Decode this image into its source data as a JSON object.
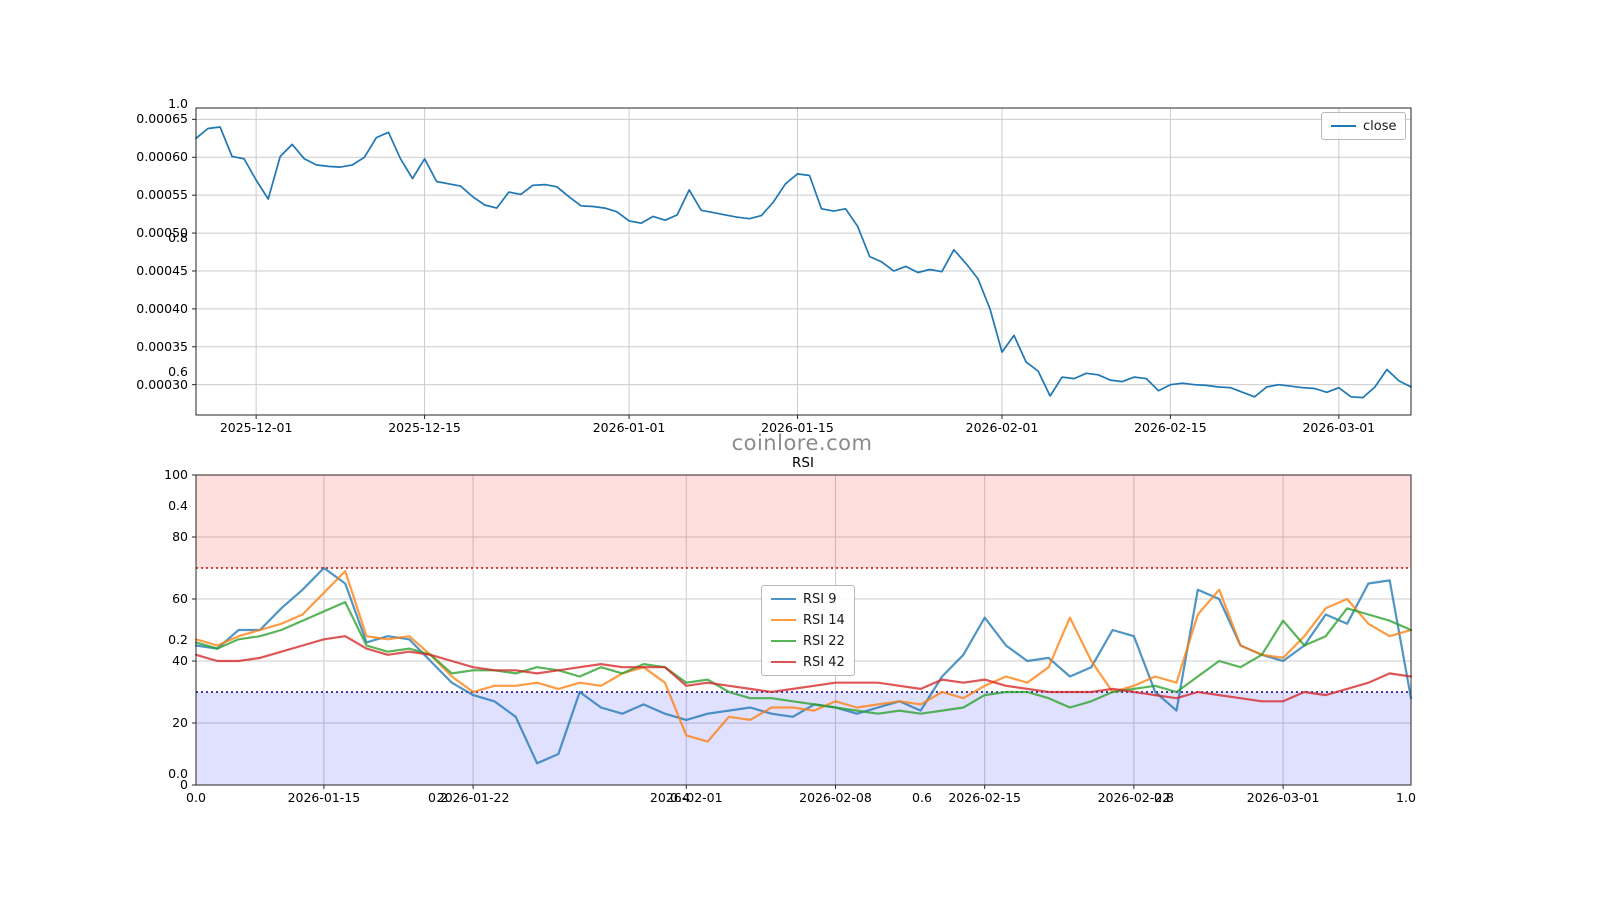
{
  "watermark": "coinlore.com",
  "overlay_axis": {
    "y_labels": [
      "1.0",
      "0.8",
      "0.6",
      "0.4",
      "0.2",
      "0.0"
    ],
    "x_labels": [
      "0.0",
      "0.2",
      "0.4",
      "0.6",
      "0.8",
      "1.0"
    ]
  },
  "chart_data": [
    {
      "type": "line",
      "name": "price-close",
      "title": "",
      "x_start_date": "2025-11-26",
      "x_end_date": "2026-03-07",
      "x_tick_labels": [
        "2025-12-01",
        "2025-12-15",
        "2026-01-01",
        "2026-01-15",
        "2026-02-01",
        "2026-02-15",
        "2026-03-01"
      ],
      "x_tick_day_index": [
        5,
        19,
        36,
        50,
        67,
        81,
        95
      ],
      "ylim": [
        0.00026,
        0.000665
      ],
      "yticks": [
        0.0003,
        0.00035,
        0.0004,
        0.00045,
        0.0005,
        0.00055,
        0.0006,
        0.00065
      ],
      "ytick_labels": [
        "0.00030",
        "0.00035",
        "0.00040",
        "0.00045",
        "0.00050",
        "0.00055",
        "0.00060",
        "0.00065"
      ],
      "grid": true,
      "legend_position": "upper-right",
      "series": [
        {
          "name": "close",
          "color": "#1f77b4",
          "values": [
            0.000625,
            0.000638,
            0.00064,
            0.000601,
            0.000598,
            0.00057,
            0.000545,
            0.000601,
            0.000617,
            0.000598,
            0.00059,
            0.000588,
            0.000587,
            0.00059,
            0.0006,
            0.000626,
            0.000633,
            0.000598,
            0.000572,
            0.000598,
            0.000568,
            0.000565,
            0.000562,
            0.000548,
            0.000537,
            0.000533,
            0.000554,
            0.000551,
            0.000563,
            0.000564,
            0.000561,
            0.000548,
            0.000536,
            0.000535,
            0.000533,
            0.000528,
            0.000516,
            0.000513,
            0.000522,
            0.000517,
            0.000524,
            0.000557,
            0.00053,
            0.000527,
            0.000524,
            0.000521,
            0.000519,
            0.000523,
            0.000541,
            0.000565,
            0.000578,
            0.000576,
            0.000532,
            0.000529,
            0.000532,
            0.000509,
            0.000469,
            0.000462,
            0.00045,
            0.000456,
            0.000448,
            0.000452,
            0.000449,
            0.000478,
            0.00046,
            0.00044,
            0.0004,
            0.000343,
            0.000365,
            0.00033,
            0.000318,
            0.000285,
            0.00031,
            0.000308,
            0.000315,
            0.000313,
            0.000306,
            0.000304,
            0.00031,
            0.000308,
            0.000292,
            0.0003,
            0.000302,
            0.0003,
            0.000299,
            0.000297,
            0.000296,
            0.00029,
            0.000284,
            0.000297,
            0.0003,
            0.000298,
            0.000296,
            0.000295,
            0.00029,
            0.000296,
            0.000284,
            0.000283,
            0.000297,
            0.00032,
            0.000305,
            0.000297
          ]
        }
      ]
    },
    {
      "type": "line",
      "name": "rsi",
      "title": "RSI",
      "x_start_date": "2026-01-09",
      "x_end_date": "2026-03-07",
      "x_tick_labels": [
        "2026-01-15",
        "2026-01-22",
        "2026-02-01",
        "2026-02-08",
        "2026-02-15",
        "2026-02-22",
        "2026-03-01"
      ],
      "x_tick_day_index": [
        6,
        13,
        23,
        30,
        37,
        44,
        51
      ],
      "ylim": [
        0,
        100
      ],
      "yticks": [
        0,
        20,
        40,
        60,
        80,
        100
      ],
      "ytick_labels": [
        "0",
        "20",
        "40",
        "60",
        "80",
        "100"
      ],
      "grid": true,
      "legend_position": "center",
      "bands": [
        {
          "name": "overbought",
          "from": 70,
          "to": 100,
          "color": "rgba(255,0,0,0.13)"
        },
        {
          "name": "oversold",
          "from": 0,
          "to": 30,
          "color": "rgba(0,0,255,0.12)"
        }
      ],
      "ref_lines": [
        {
          "y": 70,
          "color": "#cc0000"
        },
        {
          "y": 30,
          "color": "#00008b"
        }
      ],
      "series": [
        {
          "name": "RSI 9",
          "color": "#1f77b4",
          "values": [
            45,
            44,
            50,
            50,
            57,
            63,
            70,
            65,
            46,
            48,
            47,
            40,
            33,
            29,
            27,
            22,
            7,
            10,
            30,
            25,
            23,
            26,
            23,
            21,
            23,
            24,
            25,
            23,
            22,
            26,
            25,
            23,
            25,
            27,
            24,
            35,
            42,
            54,
            45,
            40,
            41,
            35,
            38,
            50,
            48,
            30,
            24,
            63,
            60,
            45,
            42,
            40,
            45,
            55,
            52,
            65,
            66,
            28
          ]
        },
        {
          "name": "RSI 14",
          "color": "#ff7f0e",
          "values": [
            47,
            45,
            48,
            50,
            52,
            55,
            62,
            69,
            48,
            47,
            48,
            42,
            35,
            30,
            32,
            32,
            33,
            31,
            33,
            32,
            36,
            38,
            33,
            16,
            14,
            22,
            21,
            25,
            25,
            24,
            27,
            25,
            26,
            27,
            26,
            30,
            28,
            32,
            35,
            33,
            38,
            54,
            40,
            30,
            32,
            35,
            33,
            55,
            63,
            45,
            42,
            41,
            48,
            57,
            60,
            52,
            48,
            50
          ]
        },
        {
          "name": "RSI 22",
          "color": "#2ca02c",
          "values": [
            46,
            44,
            47,
            48,
            50,
            53,
            56,
            59,
            45,
            43,
            44,
            42,
            36,
            37,
            37,
            36,
            38,
            37,
            35,
            38,
            36,
            39,
            38,
            33,
            34,
            30,
            28,
            28,
            27,
            26,
            25,
            24,
            23,
            24,
            23,
            24,
            25,
            29,
            30,
            30,
            28,
            25,
            27,
            30,
            31,
            32,
            30,
            35,
            40,
            38,
            42,
            53,
            45,
            48,
            57,
            55,
            53,
            50
          ]
        },
        {
          "name": "RSI 42",
          "color": "#d62728",
          "values": [
            42,
            40,
            40,
            41,
            43,
            45,
            47,
            48,
            44,
            42,
            43,
            42,
            40,
            38,
            37,
            37,
            36,
            37,
            38,
            39,
            38,
            38,
            38,
            32,
            33,
            32,
            31,
            30,
            31,
            32,
            33,
            33,
            33,
            32,
            31,
            34,
            33,
            34,
            32,
            31,
            30,
            30,
            30,
            31,
            30,
            29,
            28,
            30,
            29,
            28,
            27,
            27,
            30,
            29,
            31,
            33,
            36,
            35
          ]
        }
      ]
    }
  ]
}
